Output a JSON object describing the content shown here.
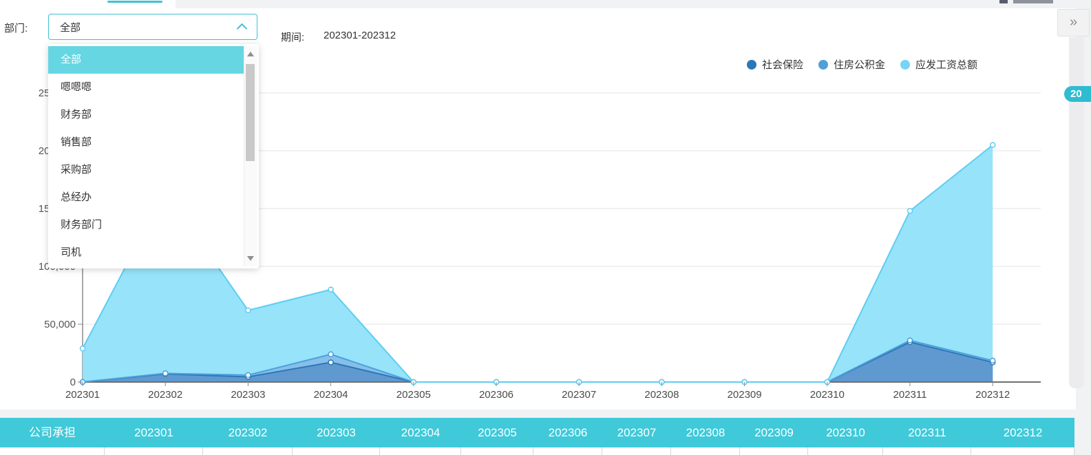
{
  "colors": {
    "accent_teal": "#3ec1d4",
    "table_header_bg": "#3fc9d9",
    "dropdown_selected_bg": "#67d6e3",
    "badge_bg": "#2fbcd1"
  },
  "filters": {
    "department_label": "部门:",
    "department_value": "全部",
    "period_label": "期间:",
    "period_value": "202301-202312"
  },
  "dropdown": {
    "selected_index": 0,
    "items": [
      "全部",
      "嗯嗯嗯",
      "财务部",
      "销售部",
      "采购部",
      "总经办",
      "财务部门",
      "司机"
    ]
  },
  "legend": {
    "items": [
      {
        "label": "社会保险",
        "color": "#2878ba"
      },
      {
        "label": "住房公积金",
        "color": "#4f9fd9"
      },
      {
        "label": "应发工资总额",
        "color": "#76d4f4"
      }
    ]
  },
  "chart_data": {
    "type": "area",
    "categories": [
      "202301",
      "202302",
      "202303",
      "202304",
      "202305",
      "202306",
      "202307",
      "202308",
      "202309",
      "202310",
      "202311",
      "202312"
    ],
    "series": [
      {
        "name": "社会保险",
        "line_color": "#2e77b5",
        "fill_color": "#5e97cd",
        "values": [
          0,
          7000,
          4500,
          17000,
          0,
          0,
          0,
          0,
          0,
          0,
          34500,
          17000
        ]
      },
      {
        "name": "住房公积金",
        "line_color": "#4aa0dc",
        "fill_color": "#85bde9",
        "values": [
          0,
          7500,
          6000,
          24000,
          0,
          0,
          0,
          0,
          0,
          0,
          36000,
          18500
        ]
      },
      {
        "name": "应发工资总额",
        "line_color": "#5fccf2",
        "fill_color": "#90e2fa",
        "values": [
          29000,
          165000,
          62000,
          80000,
          0,
          0,
          0,
          0,
          0,
          0,
          148000,
          205000
        ]
      }
    ],
    "ylim": [
      0,
      250000
    ],
    "ytick_labels": [
      "0",
      "50,000",
      "100,000",
      "150,000",
      "200,000",
      "250,000"
    ],
    "grid": true,
    "legend_position": "top-right"
  },
  "side_panel": {
    "collapse_icon": "»",
    "badge_text": "20"
  },
  "table": {
    "columns": [
      "公司承担",
      "202301",
      "202302",
      "202303",
      "202304",
      "202305",
      "202306",
      "202307",
      "202308",
      "202309",
      "202310",
      "202311",
      "202312"
    ]
  }
}
